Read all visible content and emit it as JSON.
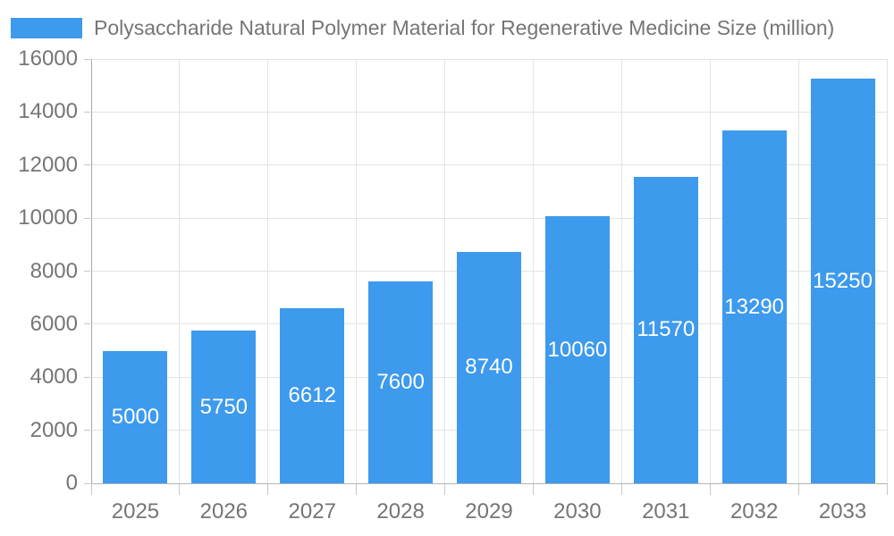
{
  "legend": {
    "label": "Polysaccharide Natural Polymer Material for Regenerative Medicine Size (million)",
    "swatch_color": "#3d9aec",
    "position": "top-left"
  },
  "chart_data": {
    "type": "bar",
    "title": "Polysaccharide Natural Polymer Material for Regenerative Medicine Size (million)",
    "legend_entries": [
      "Polysaccharide Natural Polymer Material for Regenerative Medicine Size (million)"
    ],
    "legend_position": "top-left",
    "categories": [
      "2025",
      "2026",
      "2027",
      "2028",
      "2029",
      "2030",
      "2031",
      "2032",
      "2033"
    ],
    "values": [
      5000,
      5750,
      6612,
      7600,
      8740,
      10060,
      11570,
      13290,
      15250
    ],
    "value_labels": [
      "5000",
      "5750",
      "6612",
      "7600",
      "8740",
      "10060",
      "11570",
      "13290",
      "15250"
    ],
    "xlabel": "",
    "ylabel": "",
    "ylim": [
      0,
      16000
    ],
    "ytick_step": 2000,
    "ytick_labels": [
      "0",
      "2000",
      "4000",
      "6000",
      "8000",
      "10000",
      "12000",
      "14000",
      "16000"
    ],
    "grid": true,
    "colors": {
      "bar": "#3d9aec",
      "value_label": "#ffffff",
      "axis_text": "#757575",
      "grid_line": "#e3e3e3",
      "y_axis_line": "#a6a6a6",
      "x_axis_line": "#b3b3b3",
      "tick": "#c6c6c6",
      "background": "#ffffff"
    }
  }
}
